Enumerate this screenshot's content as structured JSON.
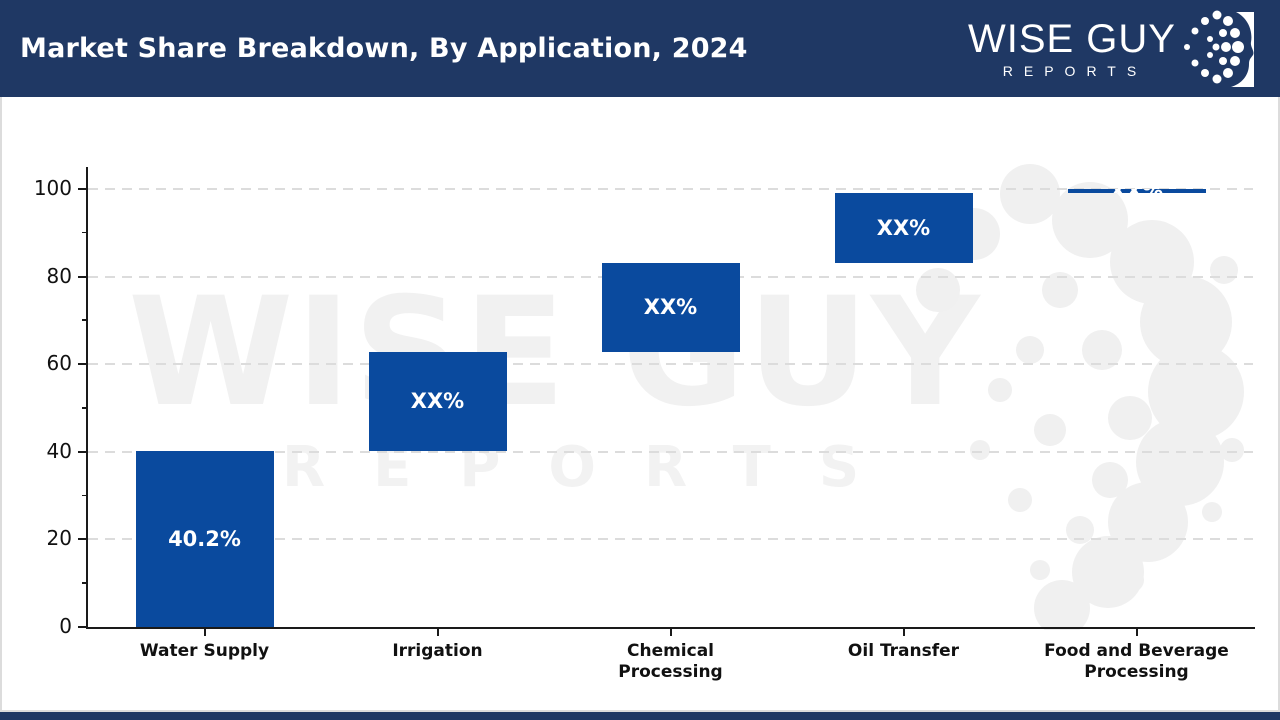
{
  "header": {
    "title": "Market Share Breakdown, By Application, 2024",
    "bg_color": "#1f3864",
    "text_color": "#ffffff",
    "logo": {
      "line1": "WISE GUY",
      "line2": "REPORTS",
      "face_icon": "dotted-head-profile"
    }
  },
  "watermark": {
    "line1": "WISE GUY",
    "line2": "REPORTS",
    "face_icon": "dotted-head-profile",
    "color": "#f1f1f1"
  },
  "footer": {
    "bg_color": "#1f3864"
  },
  "chart_data": {
    "type": "bar",
    "subtype": "waterfall",
    "title": "Market Share Breakdown, By Application, 2024",
    "xlabel": "",
    "ylabel": "",
    "ylim": [
      0,
      105
    ],
    "yticks": [
      0,
      20,
      40,
      60,
      80,
      100
    ],
    "yminorticks": [
      10,
      30,
      50,
      70,
      90
    ],
    "grid": "horizontal-dashed",
    "legend": "none",
    "bar_color": "#0a4a9e",
    "bar_label_color": "#ffffff",
    "axis_color": "#1a1a1a",
    "gridline_color": "#dcdcdc",
    "categories": [
      "Water Supply",
      "Irrigation",
      "Chemical Processing",
      "Oil Transfer",
      "Food and Beverage Processing"
    ],
    "category_label_lines": [
      [
        "Water Supply"
      ],
      [
        "Irrigation"
      ],
      [
        "Chemical",
        "Processing"
      ],
      [
        "Oil Transfer"
      ],
      [
        "Food and Beverage",
        "Processing"
      ]
    ],
    "segments": [
      {
        "category": "Water Supply",
        "start": 0,
        "end": 40.2,
        "value": 40.2,
        "label": "40.2%"
      },
      {
        "category": "Irrigation",
        "start": 40.2,
        "end": 62.8,
        "value": 22.6,
        "label": "XX%"
      },
      {
        "category": "Chemical Processing",
        "start": 62.8,
        "end": 83.2,
        "value": 20.4,
        "label": "XX%"
      },
      {
        "category": "Oil Transfer",
        "start": 83.2,
        "end": 99.0,
        "value": 15.8,
        "label": "XX%"
      },
      {
        "category": "Food and Beverage Processing",
        "start": 99.0,
        "end": 100.0,
        "value": 1.0,
        "label": "XX%"
      }
    ]
  }
}
